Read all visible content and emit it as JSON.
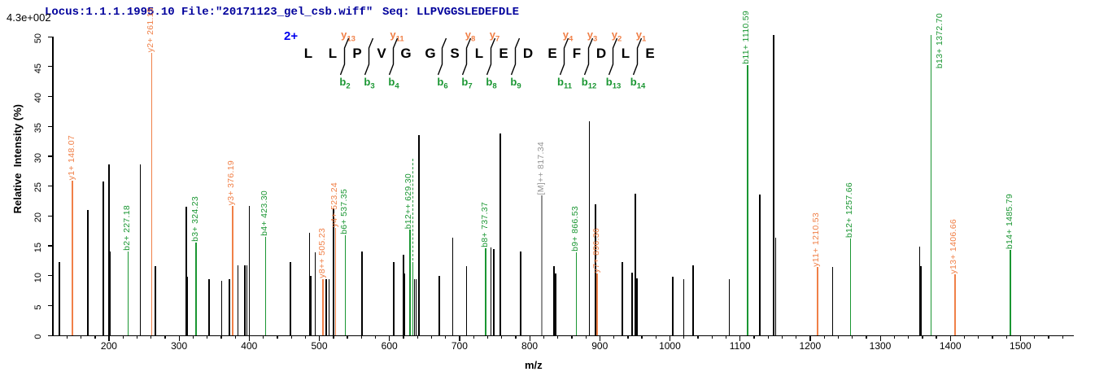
{
  "header": {
    "locus_file": "Locus:1.1.1.1995.10 File:\"20171123_gel_csb.wiff\"",
    "seq": "Seq: LLPVGGSLEDEFDLE",
    "max_intensity": "4.3e+002"
  },
  "annotation": {
    "charge": "2+",
    "residues": [
      "L",
      "L",
      "P",
      "V",
      "G",
      "G",
      "S",
      "L",
      "E",
      "D",
      "E",
      "F",
      "D",
      "L",
      "E"
    ],
    "markers": [
      {
        "gap": 2,
        "y": "y13",
        "b": "b2"
      },
      {
        "gap": 3,
        "y": null,
        "b": "b3"
      },
      {
        "gap": 4,
        "y": "y11",
        "b": "b4"
      },
      {
        "gap": 6,
        "y": null,
        "b": "b6"
      },
      {
        "gap": 7,
        "y": "y8",
        "b": "b7"
      },
      {
        "gap": 8,
        "y": "y7",
        "b": "b8"
      },
      {
        "gap": 9,
        "y": null,
        "b": "b9"
      },
      {
        "gap": 11,
        "y": "y4",
        "b": "b11"
      },
      {
        "gap": 12,
        "y": "y3",
        "b": "b12"
      },
      {
        "gap": 13,
        "y": "y2",
        "b": "b13"
      },
      {
        "gap": 14,
        "y": "y1",
        "b": "b14"
      }
    ]
  },
  "axes": {
    "x_label": "m/z",
    "y_label": "Relative  Intensity (%)",
    "x_ticks": [
      200,
      300,
      400,
      500,
      600,
      700,
      800,
      900,
      1000,
      1100,
      1200,
      1300,
      1400,
      1500
    ],
    "x_minor_step": 20,
    "x_minor_start": 140,
    "x_minor_end": 1560,
    "y_ticks": [
      0,
      5,
      10,
      15,
      20,
      25,
      30,
      35,
      40,
      45,
      50
    ]
  },
  "colors": {
    "unassigned": "#000000",
    "y_ion": "#f08048",
    "b_ion": "#1a9632",
    "precursor": "#949494",
    "header_text": "#00009c",
    "charge_text": "#0000ee"
  },
  "chart_data": {
    "type": "bar",
    "subtype": "ms2-fragmentation-spectrum",
    "title": "",
    "xlabel": "m/z",
    "ylabel": "Relative  Intensity (%)",
    "xlim": [
      120,
      1568
    ],
    "ylim": [
      0,
      50
    ],
    "grid": false,
    "series": [
      {
        "name": "unassigned",
        "color": "#000000",
        "peaks": [
          {
            "mz": 129,
            "i": 12.3
          },
          {
            "mz": 170,
            "i": 21.0
          },
          {
            "mz": 192,
            "i": 25.7
          },
          {
            "mz": 200,
            "i": 28.6
          },
          {
            "mz": 202,
            "i": 14.0
          },
          {
            "mz": 245,
            "i": 28.6
          },
          {
            "mz": 266,
            "i": 11.6
          },
          {
            "mz": 310,
            "i": 21.5
          },
          {
            "mz": 312,
            "i": 9.8
          },
          {
            "mz": 343,
            "i": 9.4
          },
          {
            "mz": 361,
            "i": 9.1
          },
          {
            "mz": 372,
            "i": 9.4
          },
          {
            "mz": 384,
            "i": 11.7
          },
          {
            "mz": 394,
            "i": 11.7
          },
          {
            "mz": 397,
            "i": 11.7
          },
          {
            "mz": 400,
            "i": 21.6
          },
          {
            "mz": 459,
            "i": 12.3
          },
          {
            "mz": 486,
            "i": 17.1
          },
          {
            "mz": 488,
            "i": 9.9
          },
          {
            "mz": 494,
            "i": 13.9
          },
          {
            "mz": 510,
            "i": 9.4
          },
          {
            "mz": 514,
            "i": 9.4
          },
          {
            "mz": 520,
            "i": 21.3
          },
          {
            "mz": 561,
            "i": 14.0
          },
          {
            "mz": 606,
            "i": 12.3
          },
          {
            "mz": 620,
            "i": 13.5
          },
          {
            "mz": 622,
            "i": 10.4
          },
          {
            "mz": 636,
            "i": 9.4
          },
          {
            "mz": 638,
            "i": 9.4
          },
          {
            "mz": 642,
            "i": 33.5
          },
          {
            "mz": 671,
            "i": 9.9
          },
          {
            "mz": 690,
            "i": 16.3
          },
          {
            "mz": 710,
            "i": 11.6
          },
          {
            "mz": 745,
            "i": 14.7
          },
          {
            "mz": 749,
            "i": 14.4
          },
          {
            "mz": 758,
            "i": 33.8
          },
          {
            "mz": 787,
            "i": 14.0
          },
          {
            "mz": 835,
            "i": 11.6
          },
          {
            "mz": 837,
            "i": 10.3
          },
          {
            "mz": 885,
            "i": 35.8
          },
          {
            "mz": 894,
            "i": 21.9
          },
          {
            "mz": 932,
            "i": 12.2
          },
          {
            "mz": 946,
            "i": 10.5
          },
          {
            "mz": 951,
            "i": 23.7
          },
          {
            "mz": 953,
            "i": 9.6
          },
          {
            "mz": 1004,
            "i": 9.8
          },
          {
            "mz": 1020,
            "i": 9.4
          },
          {
            "mz": 1033,
            "i": 11.7
          },
          {
            "mz": 1085,
            "i": 9.4
          },
          {
            "mz": 1128,
            "i": 23.6
          },
          {
            "mz": 1148,
            "i": 50.3
          },
          {
            "mz": 1151,
            "i": 16.3
          },
          {
            "mz": 1232,
            "i": 11.5
          },
          {
            "mz": 1356,
            "i": 14.8
          },
          {
            "mz": 1358,
            "i": 11.6
          }
        ]
      },
      {
        "name": "y-ions",
        "color": "#f08048",
        "peaks": [
          {
            "mz": 148.07,
            "i": 25.9,
            "label": "y1+ 148.07"
          },
          {
            "mz": 261.15,
            "i": 47.3,
            "label": "y2+ 261.15"
          },
          {
            "mz": 376.19,
            "i": 21.6,
            "label": "y3+ 376.19"
          },
          {
            "mz": 505.23,
            "i": 9.4,
            "label": "y8++ 505.23"
          },
          {
            "mz": 523.24,
            "i": 18.0,
            "label": "y4+ 523.24"
          },
          {
            "mz": 896.36,
            "i": 10.3,
            "label": "y7+ 896.36"
          },
          {
            "mz": 1210.53,
            "i": 11.4,
            "label": "y11+ 1210.53"
          },
          {
            "mz": 1406.66,
            "i": 10.2,
            "label": "y13+ 1406.66"
          }
        ]
      },
      {
        "name": "b-ions",
        "color": "#1a9632",
        "peaks": [
          {
            "mz": 227.18,
            "i": 14.0,
            "label": "b2+ 227.18"
          },
          {
            "mz": 324.23,
            "i": 15.5,
            "label": "b3+ 324.23"
          },
          {
            "mz": 423.3,
            "i": 16.5,
            "label": "b4+ 423.30"
          },
          {
            "mz": 537.35,
            "i": 16.8,
            "label": "b6+ 537.35"
          },
          {
            "mz": 629.3,
            "i": 17.7,
            "label": "b12++ 629.30"
          },
          {
            "mz": 633.5,
            "i": 12.3
          },
          {
            "mz": 737.37,
            "i": 14.6,
            "label": "b8+ 737.37"
          },
          {
            "mz": 866.53,
            "i": 13.9,
            "label": "b9+ 866.53"
          },
          {
            "mz": 1110.59,
            "i": 45.2,
            "label": "b11+ 1110.59"
          },
          {
            "mz": 1257.66,
            "i": 16.2,
            "label": "b12+ 1257.66"
          },
          {
            "mz": 1372.7,
            "i": 50.3,
            "label": "b13+ 1372.70",
            "label_pos": {
              "dx": 4,
              "top": 16
            }
          },
          {
            "mz": 1485.79,
            "i": 14.3,
            "label": "b14+ 1485.79"
          }
        ]
      },
      {
        "name": "precursor",
        "color": "#949494",
        "peaks": [
          {
            "mz": 817.34,
            "i": 23.4,
            "label": "[M]++ 817.34"
          }
        ]
      }
    ],
    "leader_line": {
      "mz": 633.5,
      "i_top": 29.5,
      "i_bottom": 12.5
    }
  }
}
